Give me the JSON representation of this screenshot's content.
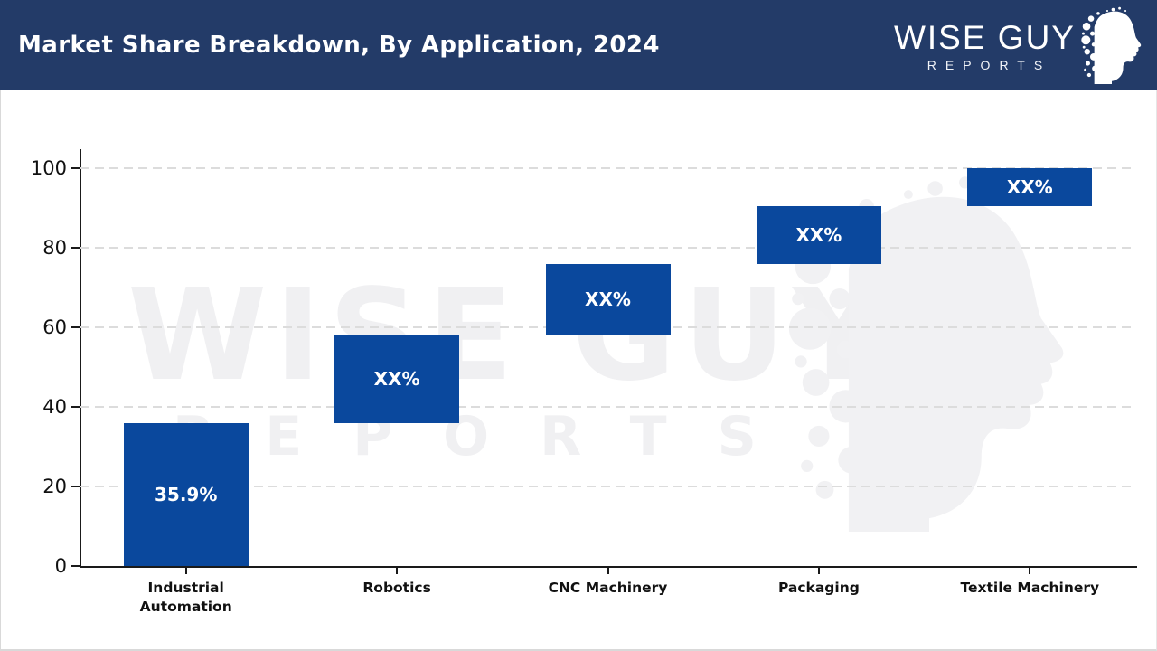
{
  "header": {
    "title": "Market Share Breakdown, By Application, 2024",
    "bg_color": "#233b68",
    "logo": {
      "name": "WISE GUY",
      "tagline": "REPORTS"
    }
  },
  "watermark": {
    "line1": "WISE GUY",
    "line2": "REPORTS"
  },
  "chart_data": {
    "type": "bar",
    "subtype": "waterfall",
    "title": "Market Share Breakdown, By Application, 2024",
    "categories": [
      "Industrial Automation",
      "Robotics",
      "CNC Machinery",
      "Packaging",
      "Textile Machinery"
    ],
    "category_label_lines": [
      [
        "Industrial",
        "Automation"
      ],
      [
        "Robotics"
      ],
      [
        "CNC Machinery"
      ],
      [
        "Packaging"
      ],
      [
        "Textile Machinery"
      ]
    ],
    "segments": [
      {
        "category": "Industrial Automation",
        "start": 0,
        "end": 35.9,
        "label": "35.9%"
      },
      {
        "category": "Robotics",
        "start": 35.9,
        "end": 58.2,
        "label": "XX%"
      },
      {
        "category": "CNC Machinery",
        "start": 58.2,
        "end": 76.0,
        "label": "XX%"
      },
      {
        "category": "Packaging",
        "start": 76.0,
        "end": 90.5,
        "label": "XX%"
      },
      {
        "category": "Textile Machinery",
        "start": 90.5,
        "end": 100,
        "label": "XX%"
      }
    ],
    "ylim": [
      0,
      100
    ],
    "yticks": [
      0,
      20,
      40,
      60,
      80,
      100
    ],
    "xlabel": "",
    "ylabel": "",
    "grid": "horizontal-dashed",
    "legend": "none",
    "bar_color": "#0a489d",
    "bar_label_color": "#ffffff",
    "axis_color": "#1a1a1a",
    "gridline_color": "#dcdcdc"
  }
}
